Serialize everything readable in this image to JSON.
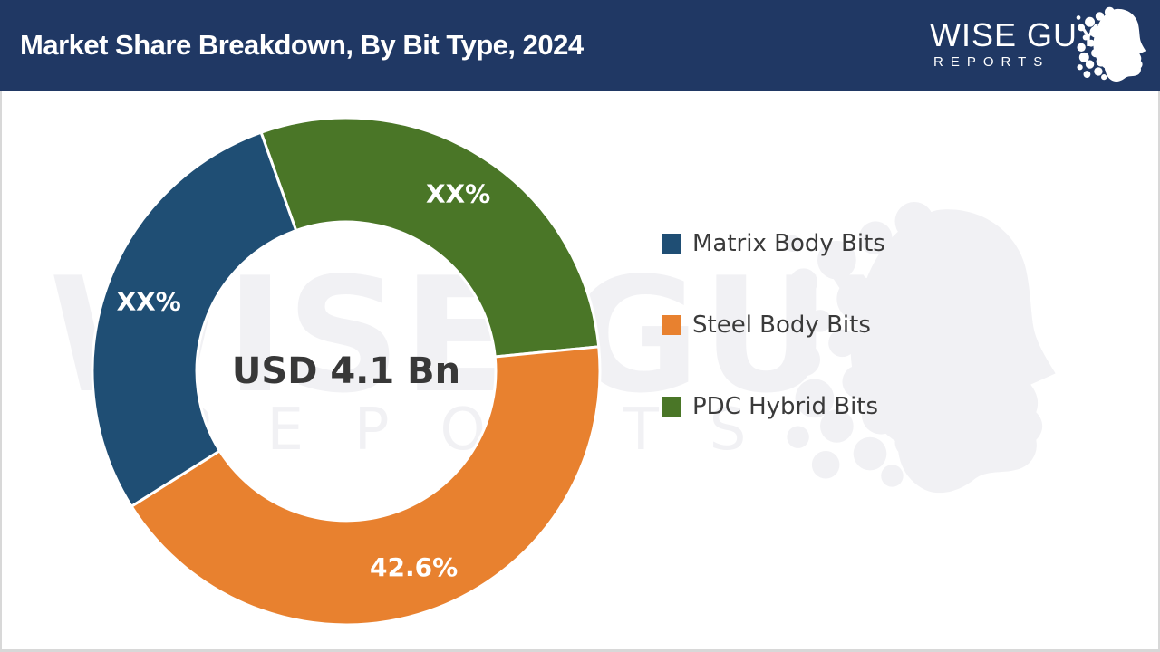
{
  "header": {
    "title": "Market Share Breakdown, By Bit Type, 2024",
    "logo": {
      "line1": "WISE GUY",
      "line2": "REPORTS"
    }
  },
  "watermark": {
    "line1": "WISE GUY",
    "line2": "REPORTS"
  },
  "chart_data": {
    "type": "pie",
    "subtype": "donut",
    "title": "Market Share Breakdown, By Bit Type, 2024",
    "center_label": "USD 4.1 Bn",
    "units": "percent share of USD 4.1 Bn market",
    "start_angle_deg_clockwise_from_north": -19.6,
    "direction": "clockwise",
    "hole_ratio": 0.59,
    "segments": [
      {
        "name": "PDC Hybrid Bits",
        "value_pct": 28.9,
        "display_label": "XX%",
        "color": "#4A7627"
      },
      {
        "name": "Steel Body Bits",
        "value_pct": 42.6,
        "display_label": "42.6%",
        "color": "#E8812F"
      },
      {
        "name": "Matrix Body Bits",
        "value_pct": 28.5,
        "display_label": "XX%",
        "color": "#1F4E74"
      }
    ],
    "legend_position": "right",
    "legend": [
      {
        "label": "Matrix Body Bits",
        "color": "#1F4E74"
      },
      {
        "label": "Steel Body Bits",
        "color": "#E8812F"
      },
      {
        "label": "PDC Hybrid Bits",
        "color": "#4A7627"
      }
    ]
  },
  "colors": {
    "header_bg": "#203864",
    "watermark": "#F1F1F4",
    "border": "#D8D8D8",
    "center_text": "#383838",
    "legend_text": "#3A3A3A"
  }
}
